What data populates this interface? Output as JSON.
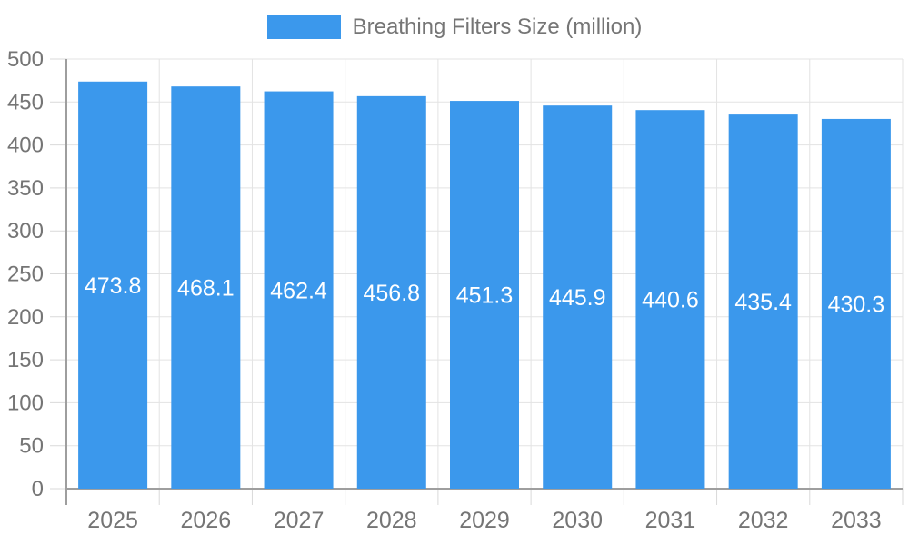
{
  "page": {
    "background": "#ffffff"
  },
  "legend": {
    "label": "Breathing Filters Size (million)",
    "swatch_color": "#3b98ec"
  },
  "chart_data": {
    "type": "bar",
    "title": "",
    "categories": [
      "2025",
      "2026",
      "2027",
      "2028",
      "2029",
      "2030",
      "2031",
      "2032",
      "2033"
    ],
    "series": [
      {
        "name": "Breathing Filters Size (million)",
        "values": [
          473.8,
          468.1,
          462.4,
          456.8,
          451.3,
          445.9,
          440.6,
          435.4,
          430.3
        ]
      }
    ],
    "xlabel": "",
    "ylabel": "",
    "ylim": [
      0,
      500
    ],
    "ytick_step": 50,
    "yticks": [
      0,
      50,
      100,
      150,
      200,
      250,
      300,
      350,
      400,
      450,
      500
    ],
    "grid": true,
    "legend_position": "top",
    "value_labels_shown": true,
    "value_label_decimals": 1,
    "colors": {
      "bar": "#3b98ec",
      "value_label": "#ffffff",
      "axis_text": "#757575",
      "grid": "#e3e3e3",
      "tick": "#d9d9d9",
      "axis_line": "#9e9e9e"
    }
  }
}
